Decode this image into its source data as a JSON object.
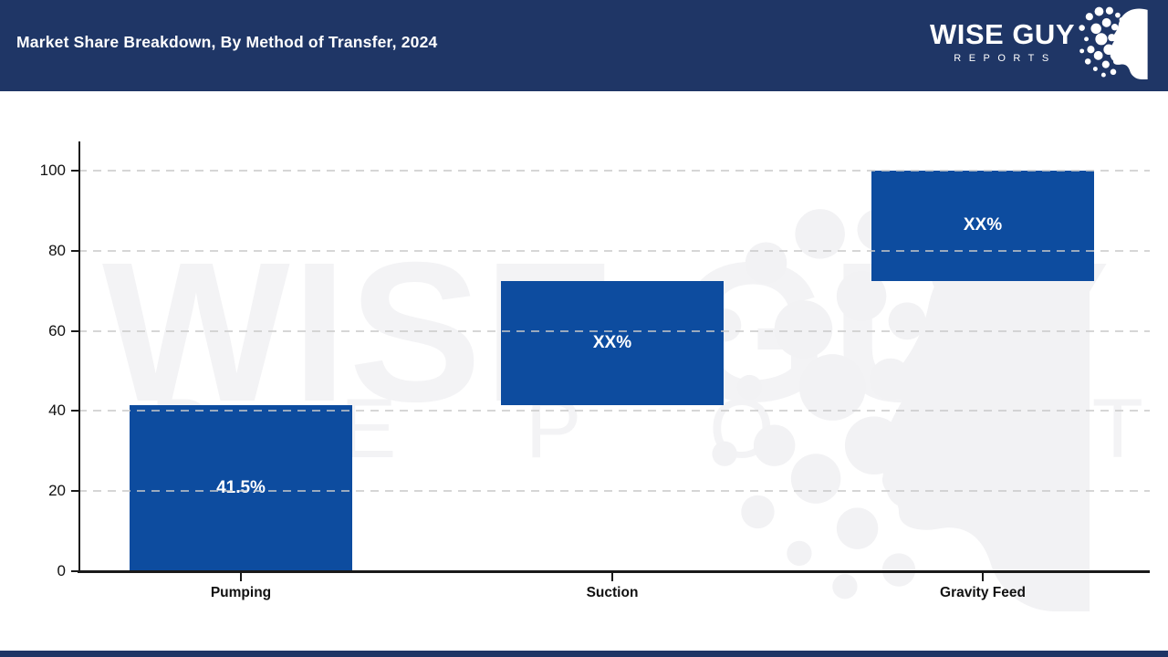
{
  "header": {
    "title": "Market Share Breakdown, By Method of Transfer, 2024",
    "logo": {
      "line1": "WISE GUY",
      "line2": "REPORTS",
      "face_icon": "dotted-head-profile"
    }
  },
  "watermark": {
    "line1": "WISE GUY",
    "line2": "REPORTS",
    "face_icon": "dotted-head-profile"
  },
  "chart_data": {
    "type": "bar",
    "subtype": "waterfall",
    "title": "Market Share Breakdown, By Method of Transfer, 2024",
    "categories": [
      "Pumping",
      "Suction",
      "Gravity Feed"
    ],
    "segments": [
      {
        "category": "Pumping",
        "start": 0,
        "end": 41.5,
        "label": "41.5%"
      },
      {
        "category": "Suction",
        "start": 41.5,
        "end": 72.5,
        "label": "XX%"
      },
      {
        "category": "Gravity Feed",
        "start": 72.5,
        "end": 100,
        "label": "XX%"
      }
    ],
    "y_ticks": [
      0,
      20,
      40,
      60,
      80,
      100
    ],
    "ylim": [
      0,
      100
    ],
    "xlabel": "",
    "ylabel": "",
    "grid": "horizontal-dashed",
    "legend": "none",
    "bar_color": "#0d4c9f",
    "bar_label_color": "#ffffff",
    "axis_color": "#1a1a1a",
    "grid_color": "#c9c9c9"
  },
  "colors": {
    "header_bg": "#1f3666",
    "footer_bg": "#1f3666",
    "watermark": "#f3f3f5",
    "background": "#ffffff"
  }
}
